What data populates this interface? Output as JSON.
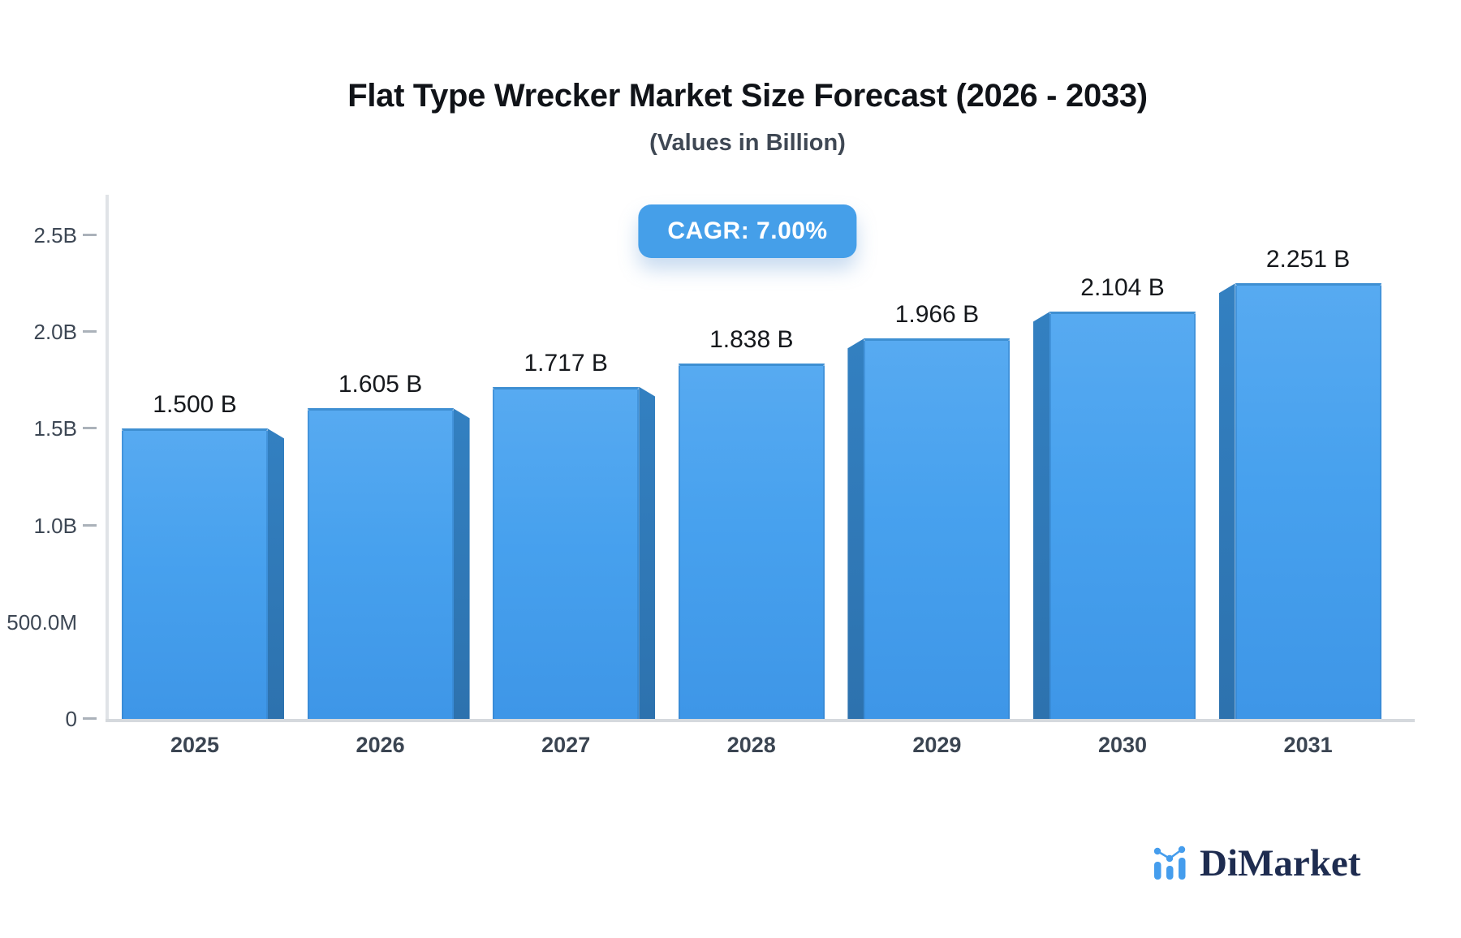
{
  "header": {
    "title": "Flat Type Wrecker Market Size Forecast (2026 - 2033)",
    "subtitle": "(Values in Billion)",
    "cagr_badge": "CAGR: 7.00%"
  },
  "chart_data": {
    "type": "bar",
    "title": "Flat Type Wrecker Market Size Forecast (2026 - 2033)",
    "subtitle": "(Values in Billion)",
    "cagr_percent": 7.0,
    "categories": [
      "2025",
      "2026",
      "2027",
      "2028",
      "2029",
      "2030",
      "2031"
    ],
    "values": [
      1.5,
      1.605,
      1.717,
      1.838,
      1.966,
      2.104,
      2.251
    ],
    "data_labels": [
      "1.500 B",
      "1.605 B",
      "1.717 B",
      "1.838 B",
      "1.966 B",
      "2.104 B",
      "2.251 B"
    ],
    "unit": "Billion",
    "xlabel": "",
    "ylabel": "",
    "ylim": [
      0,
      2.5
    ],
    "y_ticks": [
      {
        "label": "0",
        "value": 0.0,
        "dash": true
      },
      {
        "label": "500.0M",
        "value": 0.5,
        "dash": false
      },
      {
        "label": "1.0B",
        "value": 1.0,
        "dash": true
      },
      {
        "label": "1.5B",
        "value": 1.5,
        "dash": true
      },
      {
        "label": "2.0B",
        "value": 2.0,
        "dash": true
      },
      {
        "label": "2.5B",
        "value": 2.5,
        "dash": true
      }
    ],
    "grid": false,
    "legend": "none",
    "bar_style": "3d-perspective"
  },
  "colors": {
    "bar_front_top": "#57aaf1",
    "bar_front_bottom": "#3e96e7",
    "bar_border": "#3e8fd2",
    "bar_side": "#2d72ae",
    "badge_bg": "#459fe9",
    "badge_text": "#ffffff",
    "axis_line": "#d5d9dd",
    "axis_text": "#3d4754",
    "value_text": "#15181c",
    "title_text": "#101318",
    "logo_navy": "#1e2c50",
    "logo_blue": "#459ded"
  },
  "branding": {
    "logo_text": "DiMarket",
    "logo_icon": "bar-chart-trend-icon"
  }
}
